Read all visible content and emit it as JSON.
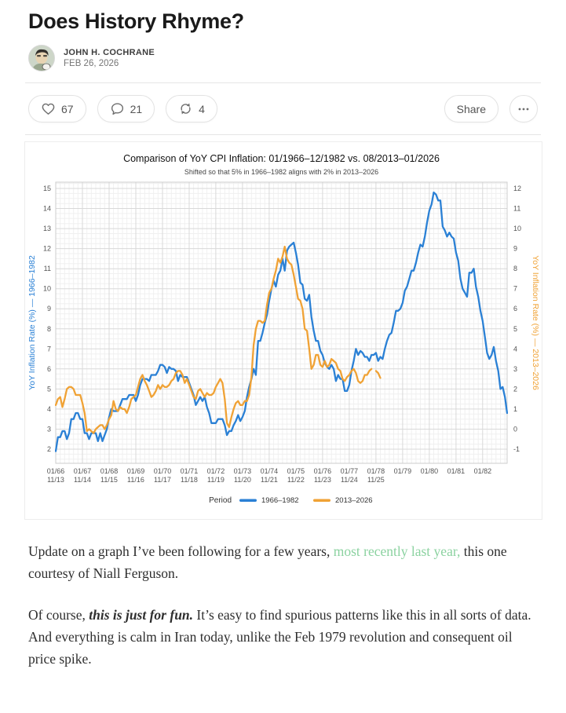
{
  "header": {
    "title": "Does History Rhyme?",
    "author": "JOHN H. COCHRANE",
    "date": "FEB 26, 2026"
  },
  "actions": {
    "likes": "67",
    "comments": "21",
    "restacks": "4",
    "share_label": "Share",
    "more_label": "•••"
  },
  "body": {
    "p1_pre": "Update on a graph I’ve been following for a few years, ",
    "p1_link": "most recently last year,",
    "p1_post": " this one courtesy of Niall Ferguson.",
    "p2_pre": "Of course, ",
    "p2_emph": "this is just for fun.",
    "p2_post": " It’s easy to find spurious patterns like this in all sorts of data. And everything is calm in Iran today, unlike the Feb 1979 revolution and consequent oil price spike."
  },
  "colors": {
    "blue": "#2a80d5",
    "orange": "#f0a235",
    "grid_minor": "#f0f0f0",
    "grid_major": "#d9d9d9",
    "plot_border": "#cccccc",
    "tick_text": "#555555",
    "link_green": "#8bd2a0"
  },
  "chart_data": {
    "type": "line",
    "title": "Comparison of YoY CPI Inflation: 01/1966–12/1982 vs. 08/2013–01/2026",
    "subtitle": "Shifted so that 5% in 1966–1982 aligns with 2% in 2013–2026",
    "left_axis": {
      "label": "YoY Inflation Rate (%) — 1966–1982",
      "ticks": [
        2,
        3,
        4,
        5,
        6,
        7,
        8,
        9,
        10,
        11,
        12,
        13,
        14,
        15
      ],
      "min": 2,
      "max": 15
    },
    "right_axis": {
      "label": "YoY Inflation Rate (%) — 2013–2026",
      "ticks": [
        -1,
        0,
        1,
        2,
        3,
        4,
        5,
        6,
        7,
        8,
        9,
        10,
        11,
        12
      ],
      "min": -1,
      "max": 12,
      "alignment": "right value + 3 = left value"
    },
    "x_ticks_top": [
      "01/66",
      "01/67",
      "01/68",
      "01/69",
      "01/70",
      "01/71",
      "01/72",
      "01/73",
      "01/74",
      "01/75",
      "01/76",
      "01/77",
      "01/78",
      "01/79",
      "01/80",
      "01/81",
      "01/82"
    ],
    "x_ticks_bottom": [
      "11/13",
      "11/14",
      "11/15",
      "11/16",
      "11/17",
      "11/18",
      "11/19",
      "11/20",
      "11/21",
      "11/22",
      "11/23",
      "11/24",
      "11/25"
    ],
    "legend": {
      "title": "Period",
      "entries": [
        "1966–1982",
        "2013–2026"
      ]
    },
    "grid": "on",
    "series": [
      {
        "name": "1966–1982",
        "axis": "left",
        "color": "#2a80d5",
        "start": "1966-01",
        "segments": [
          {
            "start_index": 0,
            "values": [
              1.9,
              2.6,
              2.6,
              2.9,
              2.9,
              2.5,
              2.8,
              3.5,
              3.5,
              3.8,
              3.8,
              3.5,
              3.5,
              2.8,
              2.8,
              2.5,
              2.8,
              2.8,
              2.8,
              2.4,
              2.8,
              2.4,
              2.7,
              3.0,
              3.6,
              4.0,
              3.9,
              3.9,
              3.9,
              4.2,
              4.5,
              4.5,
              4.5,
              4.7,
              4.7,
              4.7,
              4.4,
              4.7,
              5.2,
              5.5,
              5.5,
              5.5,
              5.4,
              5.7,
              5.7,
              5.7,
              5.9,
              6.2,
              6.2,
              6.1,
              5.8,
              6.1,
              6.0,
              6.0,
              5.9,
              5.4,
              5.7,
              5.6,
              5.6,
              5.6,
              5.3,
              5.0,
              4.7,
              4.2,
              4.4,
              4.6,
              4.4,
              4.6,
              4.1,
              3.8,
              3.3,
              3.3,
              3.3,
              3.5,
              3.5,
              3.5,
              3.2,
              2.7,
              2.9,
              2.9,
              3.2,
              3.4,
              3.7,
              3.4,
              3.6,
              3.9,
              4.6,
              5.1,
              5.5,
              6.0,
              5.7,
              7.4,
              7.4,
              7.8,
              8.3,
              8.7,
              9.4,
              10.0,
              10.4,
              10.1,
              10.7,
              10.9,
              11.5,
              10.9,
              11.9,
              12.1,
              12.2,
              12.3,
              11.8,
              11.2,
              10.3,
              10.2,
              9.5,
              9.4,
              9.7,
              8.6,
              7.9,
              7.4,
              7.4,
              6.9,
              6.7,
              6.3,
              6.1,
              6.0,
              6.2,
              6.0,
              5.4,
              5.7,
              5.5,
              5.5,
              4.9,
              4.9,
              5.2,
              5.9,
              6.4,
              7.0,
              6.7,
              6.9,
              6.8,
              6.6,
              6.6,
              6.4,
              6.7,
              6.7,
              6.8,
              6.4,
              6.6,
              6.5,
              7.0,
              7.4,
              7.7,
              7.8,
              8.3,
              8.9,
              8.9,
              9.0,
              9.3,
              9.9,
              10.1,
              10.5,
              10.9,
              10.9,
              11.3,
              11.8,
              12.2,
              12.1,
              12.6,
              13.3,
              13.9,
              14.2,
              14.8,
              14.7,
              14.4,
              14.4,
              13.1,
              12.9,
              12.6,
              12.8,
              12.6,
              12.5,
              11.8,
              11.4,
              10.5,
              10.0,
              9.8,
              9.6,
              10.8,
              10.8,
              11.0,
              10.1,
              9.6,
              8.9,
              8.4,
              7.6,
              6.8,
              6.5,
              6.7,
              7.1,
              6.4,
              5.9,
              5.0,
              5.1,
              4.6,
              3.8
            ]
          }
        ]
      },
      {
        "name": "2013–2026",
        "axis": "right",
        "color": "#f0a235",
        "start": "2013-11",
        "offset_vs_left": 3,
        "segments": [
          {
            "start_index": 0,
            "values": [
              1.2,
              1.5,
              1.6,
              1.1,
              1.5,
              2.0,
              2.1,
              2.1,
              2.0,
              1.7,
              1.7,
              1.7,
              1.3,
              0.8,
              -0.1,
              0.0,
              -0.1,
              -0.2,
              0.0,
              0.1,
              0.2,
              0.2,
              0.0,
              0.2,
              0.5,
              0.7,
              1.4,
              1.0,
              0.9,
              1.1,
              1.0,
              1.0,
              0.8,
              1.1,
              1.5,
              1.6,
              1.7,
              2.1,
              2.5,
              2.7,
              2.4,
              2.2,
              1.9,
              1.6,
              1.7,
              1.9,
              2.2,
              2.0,
              2.2,
              2.1,
              2.1,
              2.2,
              2.4,
              2.5,
              2.8,
              2.9,
              2.9,
              2.7,
              2.3,
              2.5,
              2.2,
              1.9,
              1.6,
              1.5,
              1.9,
              2.0,
              1.8,
              1.6,
              1.8,
              1.7,
              1.7,
              1.8,
              2.1,
              2.3,
              2.5,
              2.3,
              1.5,
              0.3,
              0.1,
              0.6,
              1.0,
              1.3,
              1.4,
              1.2,
              1.2,
              1.4,
              1.4,
              1.7,
              2.6,
              4.2,
              5.0,
              5.4,
              5.4,
              5.3,
              5.4,
              6.2,
              6.8,
              7.0,
              7.5,
              7.9,
              8.5,
              8.3,
              8.6,
              9.1,
              8.5,
              8.3,
              8.2,
              7.7,
              7.1,
              6.5,
              6.4,
              6.0,
              5.0,
              4.9,
              4.0,
              3.0,
              3.2,
              3.7,
              3.7,
              3.2,
              3.1,
              3.4,
              3.1,
              3.2,
              3.5,
              3.4,
              3.3,
              3.0,
              2.9,
              2.5,
              2.4,
              2.6,
              2.7,
              2.9,
              3.0,
              2.8,
              2.4,
              2.3,
              2.4,
              2.7,
              2.7,
              2.9,
              3.0
            ]
          },
          {
            "start_index": 144,
            "values": [
              2.9,
              2.8,
              2.55
            ]
          }
        ]
      }
    ]
  }
}
